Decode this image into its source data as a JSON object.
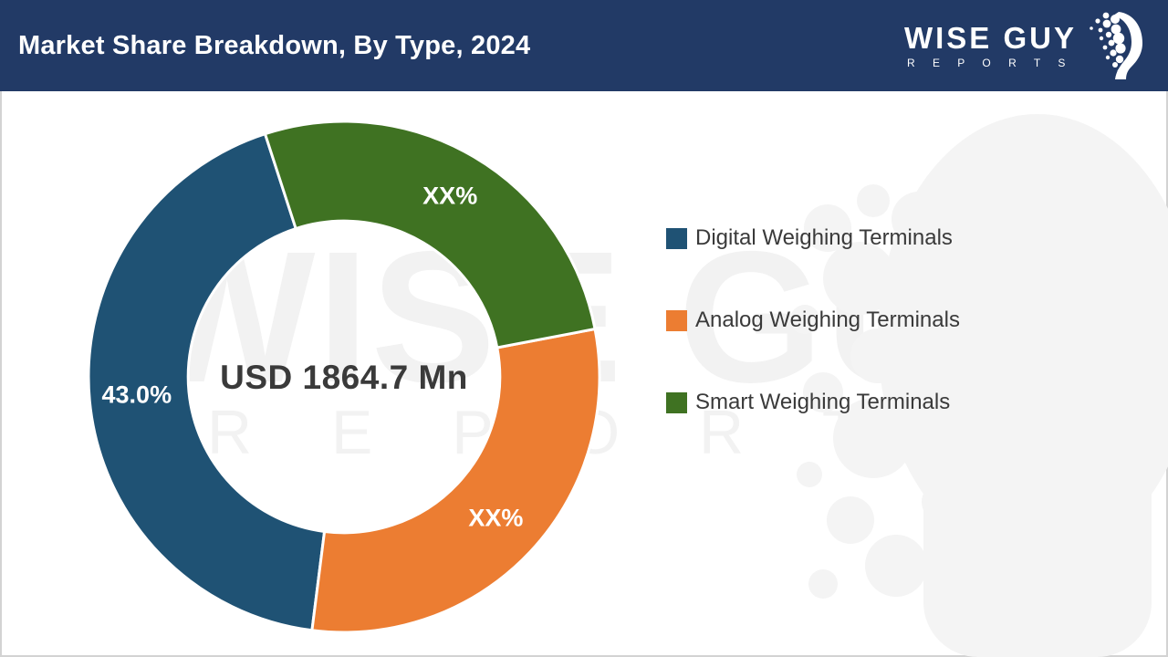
{
  "header": {
    "title": "Market Share Breakdown, By Type, 2024",
    "background_color": "#223A66",
    "logo": {
      "line1": "WISE GUY",
      "line2": "R E P O R T S"
    }
  },
  "watermark": {
    "line1": "WISE GUY",
    "line2": "R E P O R T S"
  },
  "legend": {
    "items": [
      {
        "label": "Digital Weighing Terminals",
        "color": "#1F5274"
      },
      {
        "label": "Analog Weighing Terminals",
        "color": "#EC7D32"
      },
      {
        "label": "Smart Weighing Terminals",
        "color": "#3F7222"
      }
    ]
  },
  "chart_data": {
    "type": "pie",
    "subtype": "donut",
    "title": "Market Share Breakdown, By Type, 2024",
    "center_label": "USD 1864.7 Mn",
    "start_angle_deg": 108,
    "direction": "counterclockwise",
    "inner_radius_ratio": 0.61,
    "legend_position": "right",
    "segments": [
      {
        "name": "Digital Weighing Terminals",
        "display_label": "43.0%",
        "value_pct": 43.0,
        "color": "#1F5274"
      },
      {
        "name": "Analog Weighing Terminals",
        "display_label": "XX%",
        "value_pct": 30.0,
        "color": "#EC7D32"
      },
      {
        "name": "Smart Weighing Terminals",
        "display_label": "XX%",
        "value_pct": 27.0,
        "color": "#3F7222"
      }
    ]
  }
}
